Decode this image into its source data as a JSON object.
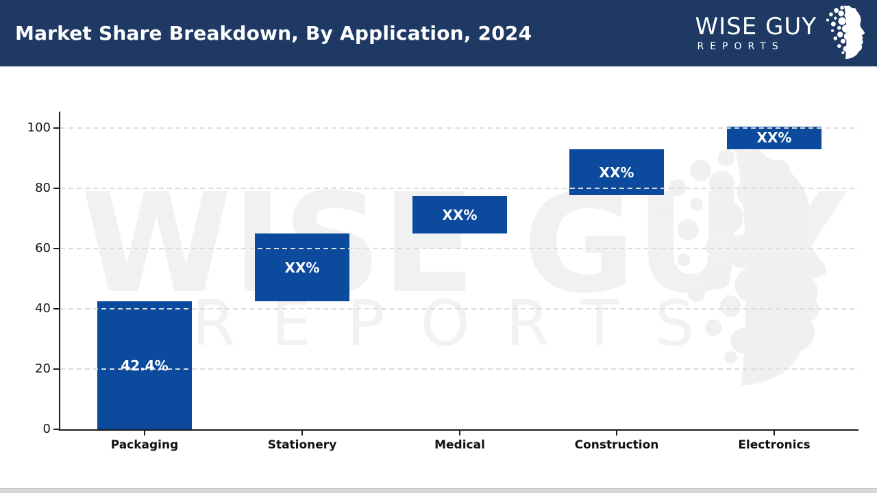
{
  "header": {
    "title": "Market Share Breakdown, By Application, 2024",
    "background": "#1e3a64",
    "brand": {
      "line1": "WISE GUY",
      "line2": "REPORTS"
    }
  },
  "watermark": {
    "line1": "WISE GUY",
    "line2": "REPORTS"
  },
  "chart_data": {
    "type": "bar",
    "subtype": "waterfall",
    "title": "Market Share Breakdown, By Application, 2024",
    "categories": [
      "Packaging",
      "Stationery",
      "Medical",
      "Construction",
      "Electronics"
    ],
    "segments": [
      {
        "category": "Packaging",
        "start": 0,
        "end": 42.4,
        "label": "42.4%"
      },
      {
        "category": "Stationery",
        "start": 42.4,
        "end": 64.9,
        "label": "XX%"
      },
      {
        "category": "Medical",
        "start": 64.9,
        "end": 77.4,
        "label": "XX%"
      },
      {
        "category": "Construction",
        "start": 77.6,
        "end": 92.8,
        "label": "XX%"
      },
      {
        "category": "Electronics",
        "start": 92.8,
        "end": 100.4,
        "label": "XX%"
      }
    ],
    "ylabel": "",
    "xlabel": "",
    "yticks": [
      0,
      20,
      40,
      60,
      80,
      100
    ],
    "ylim": [
      0,
      105.3
    ],
    "grid": "horizontal dashed",
    "legend": "none",
    "bar_color": "#0c4a9d",
    "label_color": "#ffffff",
    "axis_color": "#1a1a1a",
    "grid_color": "#dcdcdc"
  }
}
